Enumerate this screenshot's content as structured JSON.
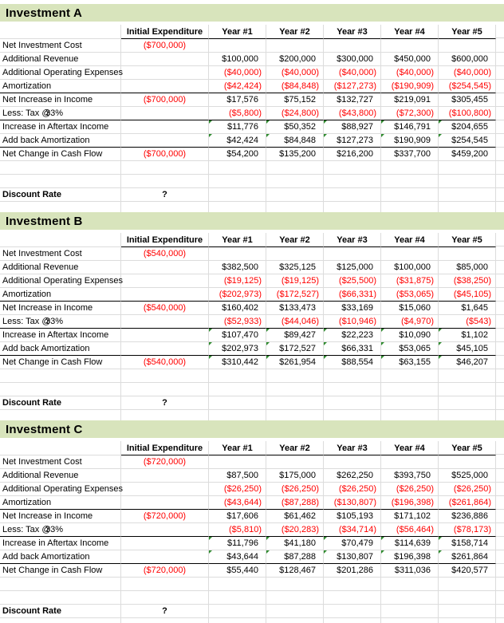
{
  "columns": [
    "Initial Expenditure",
    "Year #1",
    "Year #2",
    "Year #3",
    "Year #4",
    "Year #5"
  ],
  "discount": {
    "label": "Discount Rate",
    "value": "?"
  },
  "investments": [
    {
      "title": "Investment A",
      "rows": [
        {
          "label": "Net Investment Cost",
          "initial": "($700,000)"
        },
        {
          "label": "Additional Revenue",
          "values": [
            "$100,000",
            "$200,000",
            "$300,000",
            "$450,000",
            "$600,000"
          ]
        },
        {
          "label": "Additional Operating Expenses",
          "values": [
            "($40,000)",
            "($40,000)",
            "($40,000)",
            "($40,000)",
            "($40,000)"
          ]
        },
        {
          "label": "Amortization",
          "values": [
            "($42,424)",
            "($84,848)",
            "($127,273)",
            "($190,909)",
            "($254,545)"
          ]
        },
        {
          "label": "Net Increase in Income",
          "initial": "($700,000)",
          "top_border": true,
          "values": [
            "$17,576",
            "$75,152",
            "$132,727",
            "$219,091",
            "$305,455"
          ]
        },
        {
          "label": "Less: Tax @",
          "pct": "33%",
          "values": [
            "($5,800)",
            "($24,800)",
            "($43,800)",
            "($72,300)",
            "($100,800)"
          ]
        },
        {
          "label": "Increase in Aftertax Income",
          "top_border": true,
          "flags": true,
          "values": [
            "$11,776",
            "$50,352",
            "$88,927",
            "$146,791",
            "$204,655"
          ]
        },
        {
          "label": "Add back Amortization",
          "flags": true,
          "values": [
            "$42,424",
            "$84,848",
            "$127,273",
            "$190,909",
            "$254,545"
          ]
        },
        {
          "label": "Net Change in Cash Flow",
          "initial": "($700,000)",
          "top_border": true,
          "values": [
            "$54,200",
            "$135,200",
            "$216,200",
            "$337,700",
            "$459,200"
          ]
        }
      ]
    },
    {
      "title": "Investment B",
      "rows": [
        {
          "label": "Net Investment Cost",
          "initial": "($540,000)"
        },
        {
          "label": "Additional Revenue",
          "values": [
            "$382,500",
            "$325,125",
            "$125,000",
            "$100,000",
            "$85,000"
          ]
        },
        {
          "label": "Additional Operating Expenses",
          "values": [
            "($19,125)",
            "($19,125)",
            "($25,500)",
            "($31,875)",
            "($38,250)"
          ]
        },
        {
          "label": "Amortization",
          "values": [
            "($202,973)",
            "($172,527)",
            "($66,331)",
            "($53,065)",
            "($45,105)"
          ]
        },
        {
          "label": "Net Increase in Income",
          "initial": "($540,000)",
          "top_border": true,
          "values": [
            "$160,402",
            "$133,473",
            "$33,169",
            "$15,060",
            "$1,645"
          ]
        },
        {
          "label": "Less: Tax @",
          "pct": "33%",
          "values": [
            "($52,933)",
            "($44,046)",
            "($10,946)",
            "($4,970)",
            "($543)"
          ]
        },
        {
          "label": "Increase in Aftertax Income",
          "top_border": true,
          "flags": true,
          "values": [
            "$107,470",
            "$89,427",
            "$22,223",
            "$10,090",
            "$1,102"
          ]
        },
        {
          "label": "Add back Amortization",
          "flags": true,
          "values": [
            "$202,973",
            "$172,527",
            "$66,331",
            "$53,065",
            "$45,105"
          ]
        },
        {
          "label": "Net Change in Cash Flow",
          "initial": "($540,000)",
          "top_border": true,
          "flags": true,
          "values": [
            "$310,442",
            "$261,954",
            "$88,554",
            "$63,155",
            "$46,207"
          ]
        }
      ]
    },
    {
      "title": "Investment C",
      "rows": [
        {
          "label": "Net Investment Cost",
          "initial": "($720,000)"
        },
        {
          "label": "Additional Revenue",
          "values": [
            "$87,500",
            "$175,000",
            "$262,250",
            "$393,750",
            "$525,000"
          ]
        },
        {
          "label": "Additional Operating Expenses",
          "values": [
            "($26,250)",
            "($26,250)",
            "($26,250)",
            "($26,250)",
            "($26,250)"
          ]
        },
        {
          "label": "Amortization",
          "values": [
            "($43,644)",
            "($87,288)",
            "($130,807)",
            "($196,398)",
            "($261,864)"
          ]
        },
        {
          "label": "Net Increase in Income",
          "initial": "($720,000)",
          "top_border": true,
          "values": [
            "$17,606",
            "$61,462",
            "$105,193",
            "$171,102",
            "$236,886"
          ]
        },
        {
          "label": "Less: Tax @",
          "pct": "33%",
          "values": [
            "($5,810)",
            "($20,283)",
            "($34,714)",
            "($56,464)",
            "($78,173)"
          ]
        },
        {
          "label": "Increase in Aftertax Income",
          "top_border": true,
          "flags": true,
          "values": [
            "$11,796",
            "$41,180",
            "$70,479",
            "$114,639",
            "$158,714"
          ]
        },
        {
          "label": "Add back Amortization",
          "flags": true,
          "values": [
            "$43,644",
            "$87,288",
            "$130,807",
            "$196,398",
            "$261,864"
          ]
        },
        {
          "label": "Net Change in Cash Flow",
          "initial": "($720,000)",
          "top_border": true,
          "values": [
            "$55,440",
            "$128,467",
            "$201,286",
            "$311,036",
            "$420,577"
          ]
        }
      ]
    }
  ],
  "theme": {
    "banner_green": "#d8e4bc",
    "negative_red": "#ff0000",
    "gridline": "#dcdcdc",
    "flag_green": "#2e8b2e"
  }
}
